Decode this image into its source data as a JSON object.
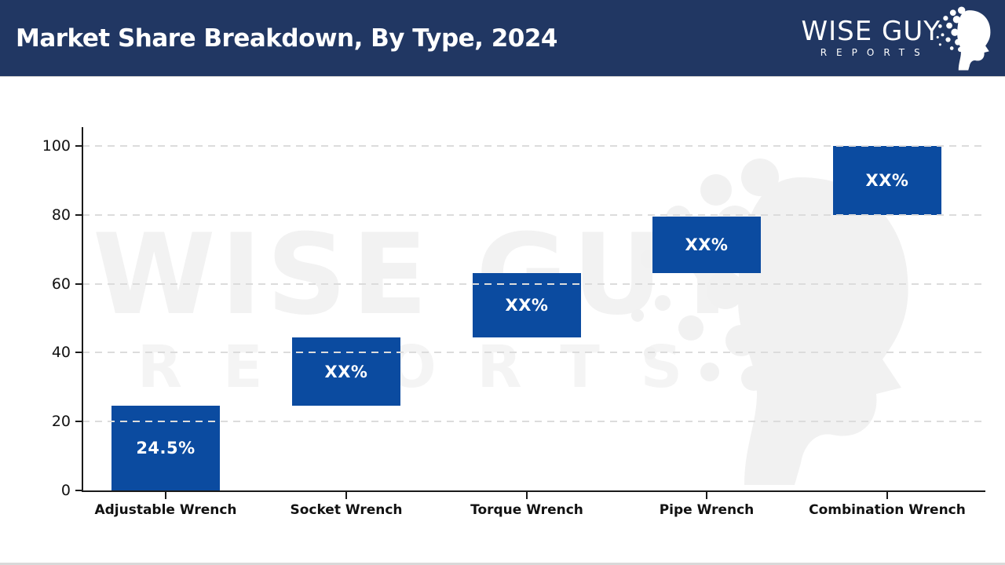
{
  "header": {
    "title": "Market Share Breakdown, By Type, 2024",
    "logo": {
      "wordmark": "WISE GUY",
      "subtext": "REPORTS"
    }
  },
  "watermark": {
    "line1": "WISE GUY",
    "line2": "REPORTS"
  },
  "chart_data": {
    "type": "bar",
    "subtype": "waterfall",
    "title": "Market Share Breakdown, By Type, 2024",
    "categories": [
      "Adjustable Wrench",
      "Socket Wrench",
      "Torque Wrench",
      "Pipe Wrench",
      "Combination Wrench"
    ],
    "bars": [
      {
        "category": "Adjustable Wrench",
        "start": 0,
        "end": 24.5,
        "label": "24.5%"
      },
      {
        "category": "Socket Wrench",
        "start": 24.5,
        "end": 44.5,
        "label": "XX%"
      },
      {
        "category": "Torque Wrench",
        "start": 44.5,
        "end": 63,
        "label": "XX%"
      },
      {
        "category": "Pipe Wrench",
        "start": 63,
        "end": 79.5,
        "label": "XX%"
      },
      {
        "category": "Combination Wrench",
        "start": 80,
        "end": 100,
        "label": "XX%"
      }
    ],
    "y_ticks": [
      0,
      20,
      40,
      60,
      80,
      100
    ],
    "ylim": [
      0,
      105
    ],
    "xlabel": "",
    "ylabel": "",
    "grid": "horizontal-dashed",
    "legend": "none",
    "colors": {
      "bar": "#0B4BA0",
      "bar_label": "#ffffff",
      "axis": "#1a1a1a",
      "gridline": "#dcdcdc",
      "header_bg": "#213763",
      "watermark": "#f2f2f2"
    }
  }
}
